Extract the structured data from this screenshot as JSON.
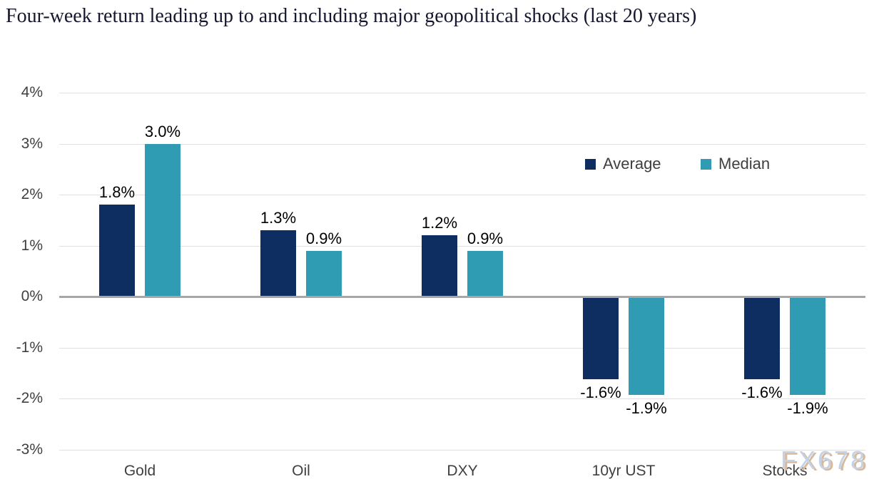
{
  "title": "Four-week return leading up to and including major geopolitical shocks (last 20 years)",
  "watermark": "FX678",
  "colors": {
    "average": "#0e2e62",
    "median": "#2f9cb4",
    "grid": "#e0e0e0",
    "zero_line": "#a6a6a6",
    "title_text": "#16162e",
    "axis_text": "#3f3f3f",
    "value_label_text": "#000000",
    "watermark_fill": "#c4d2e4",
    "watermark_shadow": "#d8b99c",
    "background": "#ffffff"
  },
  "legend": {
    "position": "inside-right",
    "items": [
      {
        "name": "Average",
        "color": "#0e2e62"
      },
      {
        "name": "Median",
        "color": "#2f9cb4"
      }
    ]
  },
  "chart_data": {
    "type": "bar",
    "title": "Four-week return leading up to and including major geopolitical shocks (last 20 years)",
    "categories": [
      "Gold",
      "Oil",
      "DXY",
      "10yr UST",
      "Stocks"
    ],
    "series": [
      {
        "name": "Average",
        "color": "#0e2e62",
        "values": [
          1.8,
          1.3,
          1.2,
          -1.6,
          -1.6
        ],
        "value_labels": [
          "1.8%",
          "1.3%",
          "1.2%",
          "-1.6%",
          "-1.6%"
        ]
      },
      {
        "name": "Median",
        "color": "#2f9cb4",
        "values": [
          3.0,
          0.9,
          0.9,
          -1.9,
          -1.9
        ],
        "value_labels": [
          "3.0%",
          "0.9%",
          "0.9%",
          "-1.9%",
          "-1.9%"
        ]
      }
    ],
    "xlabel": "",
    "ylabel": "",
    "y_ticks": [
      {
        "label": "4%",
        "value": 4
      },
      {
        "label": "3%",
        "value": 3
      },
      {
        "label": "2%",
        "value": 2
      },
      {
        "label": "1%",
        "value": 1
      },
      {
        "label": "0%",
        "value": 0
      },
      {
        "label": "-1%",
        "value": -1
      },
      {
        "label": "-2%",
        "value": -2
      },
      {
        "label": "-3%",
        "value": -3
      }
    ],
    "ylim": [
      -3,
      4
    ],
    "grid": true,
    "legend_position": "inside-right"
  }
}
